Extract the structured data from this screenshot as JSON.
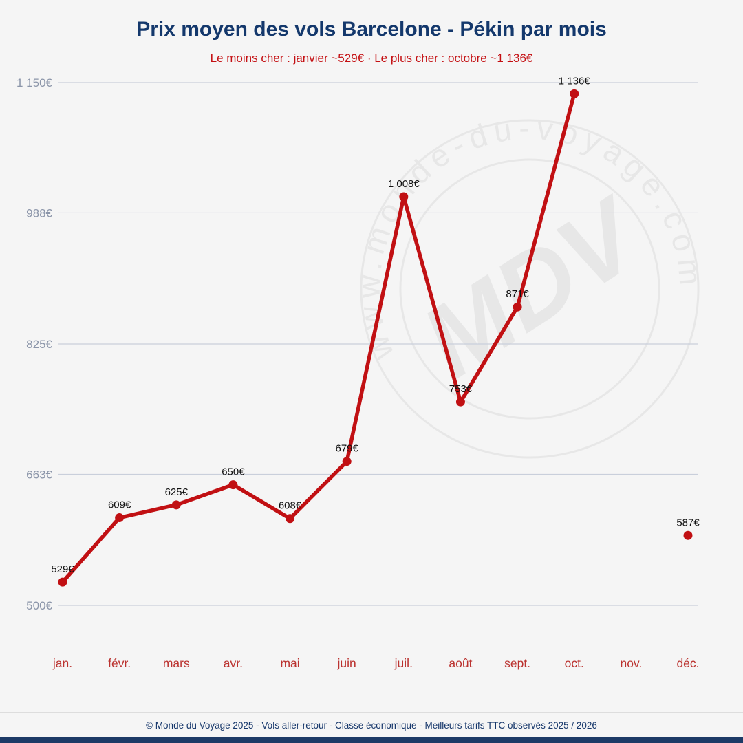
{
  "title": "Prix moyen des vols Barcelone - Pékin par mois",
  "subtitle": "Le moins cher : janvier ~529€ · Le plus cher : octobre ~1 136€",
  "footer": {
    "text": "© Monde du Voyage 2025 - Vols aller-retour - Classe économique - Meilleurs tarifs TTC observés 2025 / 2026"
  },
  "watermark": {
    "circle_text": "www.monde-du-voyage.com",
    "center_text": "MDV"
  },
  "colors": {
    "background": "#f5f5f5",
    "title": "#14386c",
    "subtitle": "#c40f12",
    "line": "#c11013",
    "point": "#c11013",
    "grid": "#c9cfdb",
    "axis_label": "#8b95a9",
    "x_label": "#bb3330",
    "point_label": "#111111",
    "footer_text": "#16376b",
    "footer_bar": "#1d3a66",
    "watermark": "#e6e6e6"
  },
  "chart_data": {
    "type": "line",
    "title": "Prix moyen des vols Barcelone - Pékin par mois",
    "xlabel": "",
    "ylabel": "",
    "categories": [
      "jan.",
      "févr.",
      "mars",
      "avr.",
      "mai",
      "juin",
      "juil.",
      "août",
      "sept.",
      "oct.",
      "nov.",
      "déc."
    ],
    "values": [
      529,
      609,
      625,
      650,
      608,
      679,
      1008,
      753,
      871,
      1136,
      null,
      587
    ],
    "point_labels": [
      "529€",
      "609€",
      "625€",
      "650€",
      "608€",
      "679€",
      "1 008€",
      "753€",
      "871€",
      "1 136€",
      "",
      "587€"
    ],
    "ylim": [
      500,
      1150
    ],
    "yticks": [
      {
        "value": 1150,
        "label": "1 150€"
      },
      {
        "value": 988,
        "label": "988€"
      },
      {
        "value": 825,
        "label": "825€"
      },
      {
        "value": 663,
        "label": "663€"
      },
      {
        "value": 500,
        "label": "500€"
      }
    ],
    "grid": true,
    "legend": false
  }
}
